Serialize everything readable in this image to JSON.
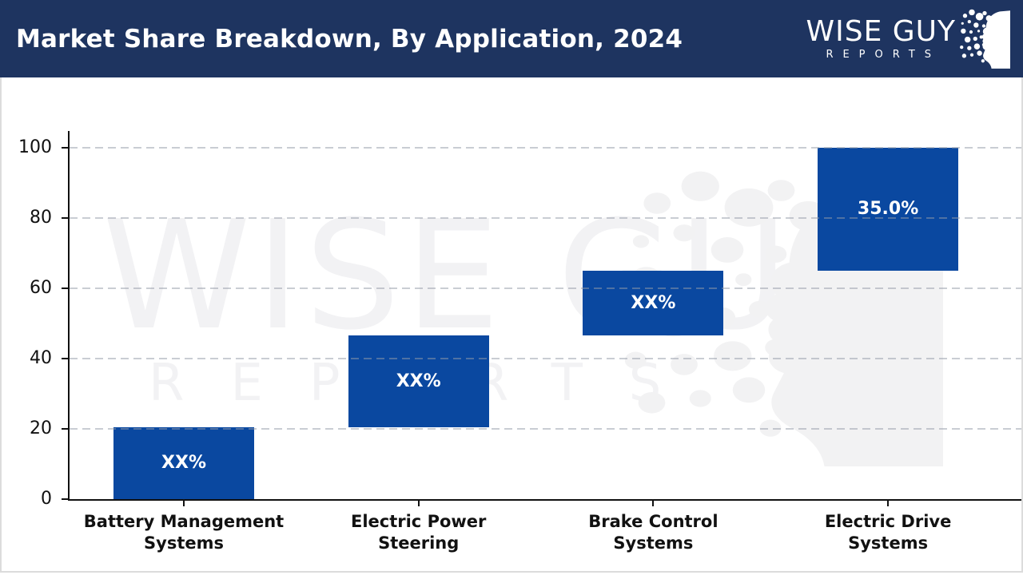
{
  "header": {
    "title": "Market Share Breakdown, By Application, 2024",
    "logo": {
      "wordmark": "WISE GUY",
      "subtitle": "REPORTS"
    }
  },
  "watermark": {
    "wordmark": "WISE GUY",
    "subtitle": "REPORTS"
  },
  "chart_data": {
    "type": "bar",
    "variant": "floating-waterfall",
    "title": "Market Share Breakdown, By Application, 2024",
    "categories": [
      "Battery Management\nSystems",
      "Electric Power\nSteering",
      "Brake Control\nSystems",
      "Electric Drive\nSystems"
    ],
    "bars": [
      {
        "category": "Battery Management Systems",
        "start": 0,
        "end": 20.5,
        "label": "XX%"
      },
      {
        "category": "Electric Power Steering",
        "start": 20.5,
        "end": 46.5,
        "label": "XX%"
      },
      {
        "category": "Brake Control Systems",
        "start": 46.5,
        "end": 65,
        "label": "XX%"
      },
      {
        "category": "Electric Drive Systems",
        "start": 65,
        "end": 100,
        "label": "35.0%"
      }
    ],
    "xlabel": "",
    "ylabel": "",
    "ylim": [
      0,
      100
    ],
    "yticks": [
      0,
      20,
      40,
      60,
      80,
      100
    ],
    "grid": {
      "axis": "y",
      "style": "dashed",
      "color": "#d9d9d9",
      "drawn_over_bars": true
    },
    "legend": "none",
    "bar_color": "#0a48a0",
    "bar_label_color": "#ffffff"
  },
  "colors": {
    "header_bg": "#1e3460",
    "bar_blue": "#0a48a0",
    "axis": "#111111",
    "grid": "#d9d9d9",
    "frame_border": "#dcdcdc",
    "watermark": "#f2f2f4",
    "title_text": "#ffffff"
  }
}
